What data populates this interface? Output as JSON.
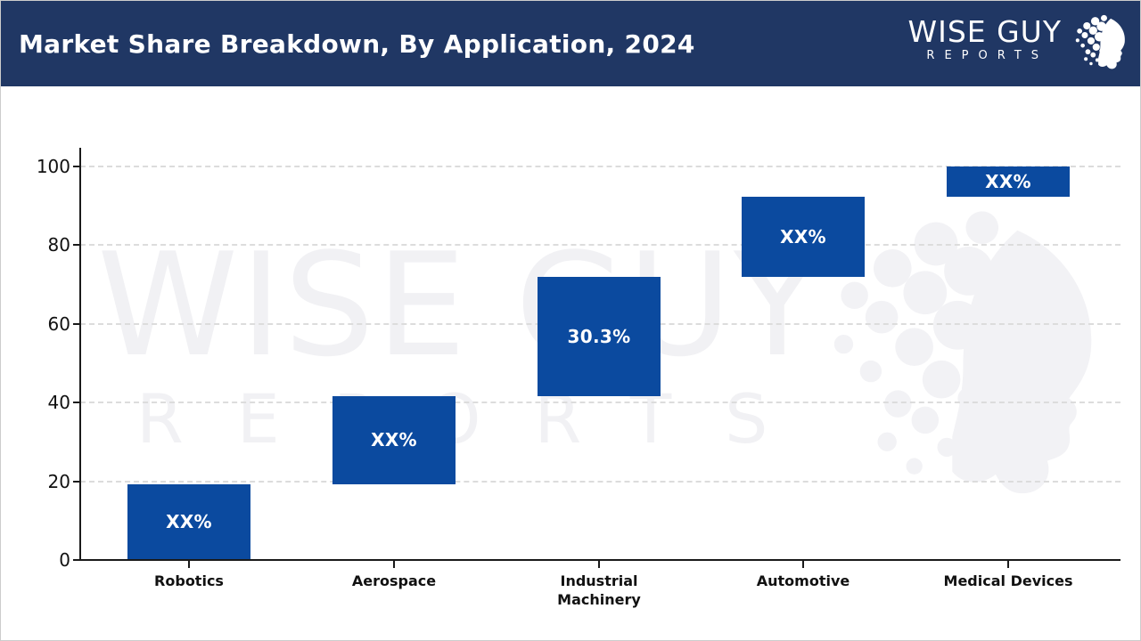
{
  "header": {
    "title": "Market Share Breakdown, By Application, 2024",
    "logo": {
      "wordmark": "WISE GUY",
      "sub_wordmark": "REPORTS",
      "icon": "dotted-face-profile",
      "background_color": "#203764"
    }
  },
  "watermark": {
    "line1": "WISE GUY",
    "line2": "REPORTS",
    "icon": "dotted-face-profile"
  },
  "chart_data": {
    "type": "bar",
    "subtype": "waterfall",
    "title": "Market Share Breakdown, By Application, 2024",
    "categories": [
      "Robotics",
      "Aerospace",
      "Industrial\nMachinery",
      "Automotive",
      "Medical Devices"
    ],
    "segments": [
      {
        "category": "Robotics",
        "label": "XX%",
        "start": 0,
        "end": 19.3,
        "value_estimated": 19.3
      },
      {
        "category": "Aerospace",
        "label": "XX%",
        "start": 19.3,
        "end": 41.7,
        "value_estimated": 22.4
      },
      {
        "category": "Industrial Machinery",
        "label": "30.3%",
        "start": 41.7,
        "end": 72.0,
        "value_estimated": 30.3
      },
      {
        "category": "Automotive",
        "label": "XX%",
        "start": 72.0,
        "end": 92.4,
        "value_estimated": 20.4
      },
      {
        "category": "Medical Devices",
        "label": "XX%",
        "start": 92.4,
        "end": 100.0,
        "value_estimated": 7.6
      }
    ],
    "yticks": [
      0,
      20,
      40,
      60,
      80,
      100
    ],
    "ylim": [
      0,
      105
    ],
    "xlabel": "",
    "ylabel": "",
    "grid": "horizontal-dashed",
    "legend": "none",
    "bar_color": "#0b4a9f",
    "note": "Only the Industrial Machinery segment shows a numeric value (30.3%); all other bars are masked with XX%. Segment start/end values estimated from gridlines."
  }
}
